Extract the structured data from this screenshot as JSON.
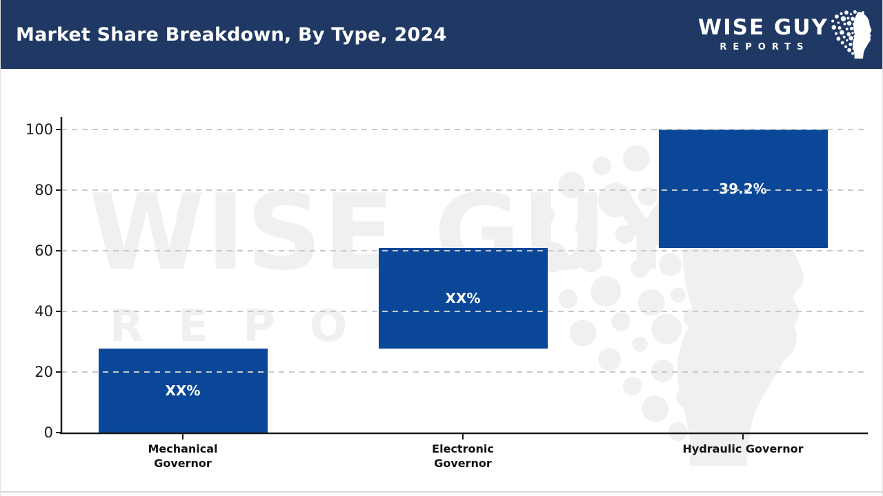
{
  "header": {
    "title": "Market Share Breakdown, By Type, 2024"
  },
  "brand": {
    "name_line": "WISE GUY",
    "reports_line": "REPORTS"
  },
  "watermark": {
    "name_line": "WISE GUY",
    "reports_line": "REPORTS"
  },
  "chart_data": {
    "type": "bar",
    "subtype": "floating-waterfall",
    "title": "Market Share Breakdown, By Type, 2024",
    "categories": [
      "Mechanical Governor",
      "Electronic Governor",
      "Hydraulic Governor"
    ],
    "category_lines": [
      [
        "Mechanical",
        "Governor"
      ],
      [
        "Electronic",
        "Governor"
      ],
      [
        "Hydraulic Governor"
      ]
    ],
    "segments": [
      {
        "category": "Mechanical Governor",
        "start": 0,
        "end": 27.8,
        "label": "XX%"
      },
      {
        "category": "Electronic Governor",
        "start": 27.8,
        "end": 60.8,
        "label": "XX%"
      },
      {
        "category": "Hydraulic Governor",
        "start": 60.8,
        "end": 100,
        "label": "39.2%"
      }
    ],
    "ylim": [
      0,
      100
    ],
    "yticks": [
      0,
      20,
      40,
      60,
      80,
      100
    ],
    "xlabel": "",
    "ylabel": "",
    "grid": "horizontal dashed gridlines drawn over bars",
    "legend": "none",
    "bar_color": "#0a4798",
    "bar_label_color": "#ffffff"
  },
  "colors": {
    "header_bg": "#1f3864",
    "bar": "#0a4798",
    "axis": "#1a1a1a",
    "gridline": "#c9c9c9",
    "watermark": "#eff0f2",
    "page_bg": "#ffffff",
    "footer_rule": "#d9d9d9"
  }
}
